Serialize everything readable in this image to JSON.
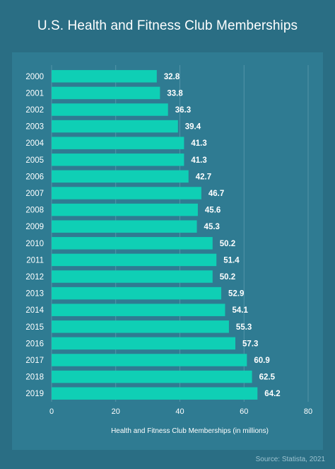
{
  "title": "U.S. Health and Fitness Club Memberships",
  "source": "Source: Statista, 2021",
  "colors": {
    "background": "#2a6e84",
    "panel": "#2f7b92",
    "bar": "#0fcfb5",
    "text": "#ffffff",
    "grid": "#5d9aad"
  },
  "chart_data": {
    "type": "bar",
    "orientation": "horizontal",
    "title": "U.S. Health and Fitness Club Memberships",
    "xlabel": "Health and Fitness Club Memberships (in millions)",
    "ylabel": "",
    "xlim": [
      0,
      80
    ],
    "xticks": [
      0,
      20,
      40,
      60,
      80
    ],
    "grid": true,
    "categories": [
      "2000",
      "2001",
      "2002",
      "2003",
      "2004",
      "2005",
      "2006",
      "2007",
      "2008",
      "2009",
      "2010",
      "2011",
      "2012",
      "2013",
      "2014",
      "2015",
      "2016",
      "2017",
      "2018",
      "2019"
    ],
    "values": [
      32.8,
      33.8,
      36.3,
      39.4,
      41.3,
      41.3,
      42.7,
      46.7,
      45.6,
      45.3,
      50.2,
      51.4,
      50.2,
      52.9,
      54.1,
      55.3,
      57.3,
      60.9,
      62.5,
      64.2
    ]
  }
}
